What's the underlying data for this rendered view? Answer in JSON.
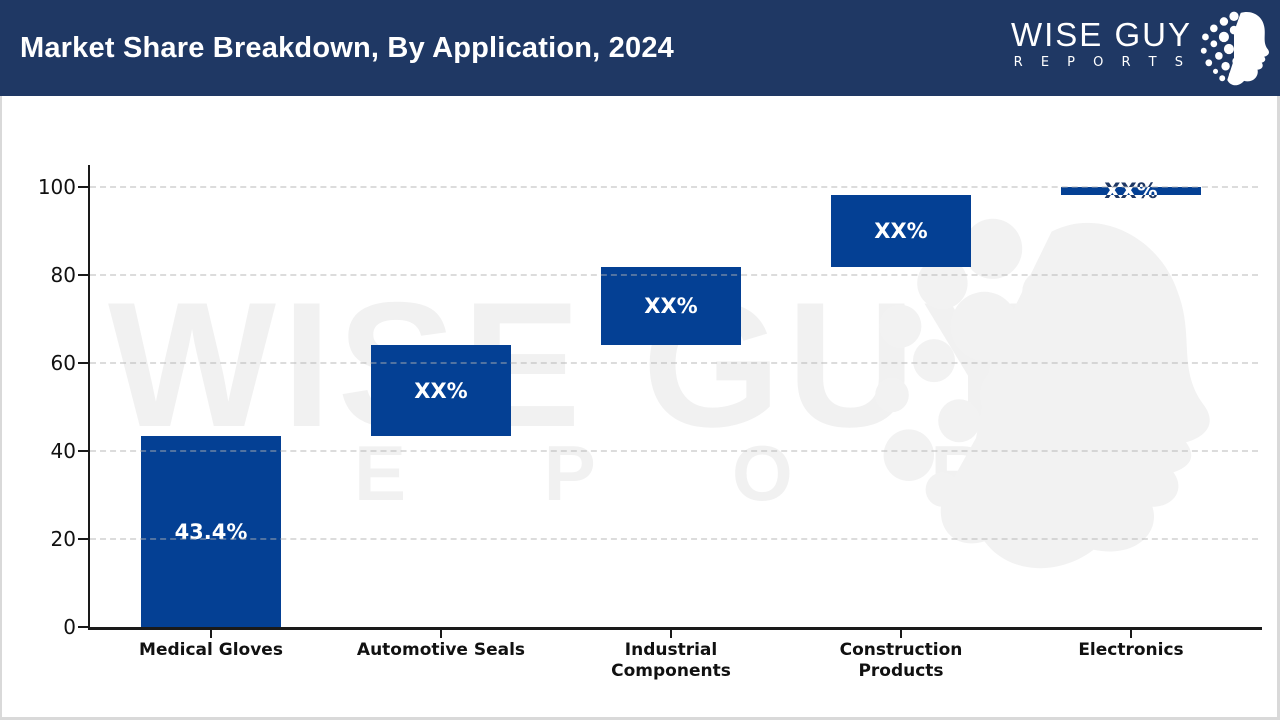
{
  "header": {
    "title": "Market Share Breakdown, By Application, 2024",
    "logo": {
      "name": "WISE GUY",
      "sub": "R E P O R T S"
    }
  },
  "watermark": {
    "name": "WISE GUY",
    "sub": "R E P O R T S"
  },
  "colors": {
    "header_bg": "#1f3864",
    "bar": "#044094",
    "bar_label": "#ffffff",
    "thin_bar_label": "#1f3864",
    "axis": "#1a1a1a",
    "gridline": "#d9d9d9",
    "watermark": "#f1f1f1"
  },
  "chart_data": {
    "type": "bar",
    "subtype": "waterfall",
    "title": "Market Share Breakdown, By Application, 2024",
    "categories": [
      "Medical Gloves",
      "Automotive Seals",
      "Industrial\nComponents",
      "Construction\nProducts",
      "Electronics"
    ],
    "bars": [
      {
        "category": "Medical Gloves",
        "start": 0,
        "end": 43.4,
        "label": "43.4%"
      },
      {
        "category": "Automotive Seals",
        "start": 43.4,
        "end": 64.0,
        "label": "XX%"
      },
      {
        "category": "Industrial Components",
        "start": 64.0,
        "end": 81.8,
        "label": "XX%"
      },
      {
        "category": "Construction Products",
        "start": 81.8,
        "end": 98.2,
        "label": "XX%"
      },
      {
        "category": "Electronics",
        "start": 98.2,
        "end": 100,
        "label": "XX%"
      }
    ],
    "yticks": [
      0,
      20,
      40,
      60,
      80,
      100
    ],
    "ylim": [
      0,
      105
    ],
    "xlabel": "",
    "ylabel": "",
    "grid": "horizontal-dashed",
    "legend": "none"
  }
}
